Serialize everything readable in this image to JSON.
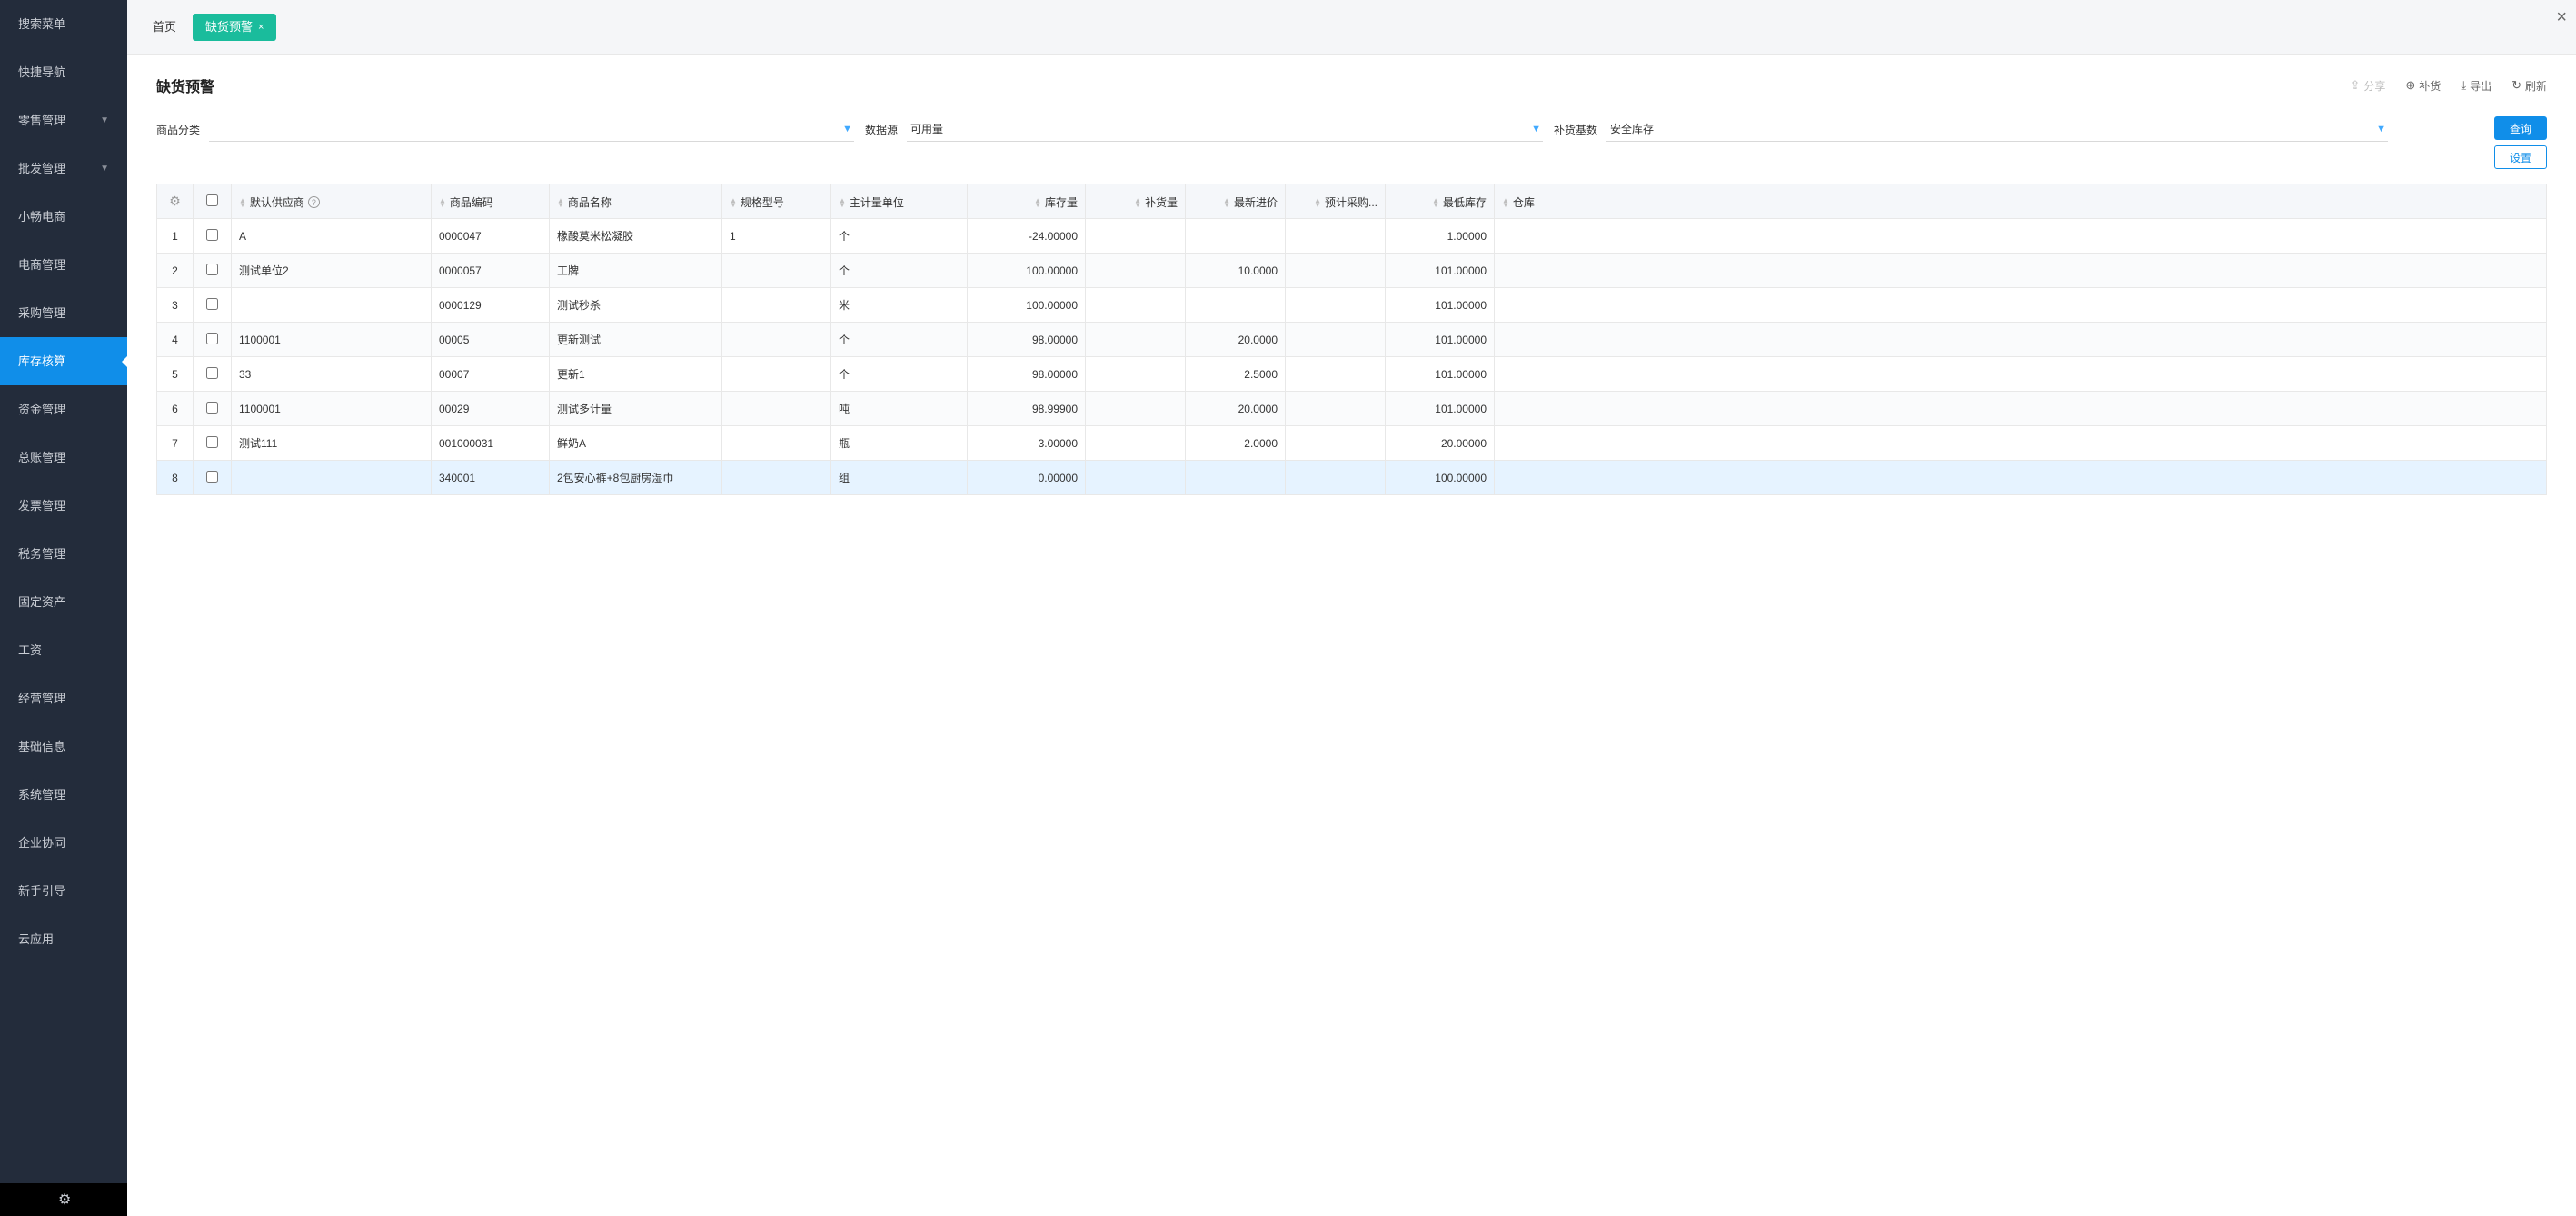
{
  "sidebar": {
    "items": [
      {
        "label": "搜索菜单",
        "expandable": false
      },
      {
        "label": "快捷导航",
        "expandable": false
      },
      {
        "label": "零售管理",
        "expandable": true
      },
      {
        "label": "批发管理",
        "expandable": true
      },
      {
        "label": "小畅电商",
        "expandable": false
      },
      {
        "label": "电商管理",
        "expandable": false
      },
      {
        "label": "采购管理",
        "expandable": false
      },
      {
        "label": "库存核算",
        "expandable": false,
        "active": true
      },
      {
        "label": "资金管理",
        "expandable": false
      },
      {
        "label": "总账管理",
        "expandable": false
      },
      {
        "label": "发票管理",
        "expandable": false
      },
      {
        "label": "税务管理",
        "expandable": false
      },
      {
        "label": "固定资产",
        "expandable": false
      },
      {
        "label": "工资",
        "expandable": false
      },
      {
        "label": "经营管理",
        "expandable": false
      },
      {
        "label": "基础信息",
        "expandable": false
      },
      {
        "label": "系统管理",
        "expandable": false
      },
      {
        "label": "企业协同",
        "expandable": false
      },
      {
        "label": "新手引导",
        "expandable": false
      },
      {
        "label": "云应用",
        "expandable": false
      }
    ]
  },
  "tabs": {
    "home": "首页",
    "active": "缺货预警"
  },
  "page": {
    "title": "缺货预警",
    "actions": {
      "share": "分享",
      "restock": "补货",
      "export": "导出",
      "refresh": "刷新"
    }
  },
  "filters": {
    "category_label": "商品分类",
    "source_label": "数据源",
    "source_value": "可用量",
    "basis_label": "补货基数",
    "basis_value": "安全库存",
    "query_btn": "查询",
    "settings_btn": "设置"
  },
  "columns": {
    "supplier": "默认供应商",
    "code": "商品编码",
    "name": "商品名称",
    "spec": "规格型号",
    "unit": "主计量单位",
    "stock": "库存量",
    "restock": "补货量",
    "price": "最新进价",
    "estimate": "预计采购...",
    "min": "最低库存",
    "warehouse": "仓库"
  },
  "rows": [
    {
      "idx": "1",
      "supplier": "A",
      "code": "0000047",
      "name": "橡酸莫米松凝胶",
      "spec": "1",
      "unit": "个",
      "stock": "-24.00000",
      "restock": "",
      "price": "",
      "estimate": "",
      "min": "1.00000"
    },
    {
      "idx": "2",
      "supplier": "测试单位2",
      "code": "0000057",
      "name": "工牌",
      "spec": "",
      "unit": "个",
      "stock": "100.00000",
      "restock": "",
      "price": "10.0000",
      "estimate": "",
      "min": "101.00000"
    },
    {
      "idx": "3",
      "supplier": "",
      "code": "0000129",
      "name": "测试秒杀",
      "spec": "",
      "unit": "米",
      "stock": "100.00000",
      "restock": "",
      "price": "",
      "estimate": "",
      "min": "101.00000"
    },
    {
      "idx": "4",
      "supplier": "1100001",
      "code": "00005",
      "name": "更新测试",
      "spec": "",
      "unit": "个",
      "stock": "98.00000",
      "restock": "",
      "price": "20.0000",
      "estimate": "",
      "min": "101.00000"
    },
    {
      "idx": "5",
      "supplier": "33",
      "code": "00007",
      "name": "更新1",
      "spec": "",
      "unit": "个",
      "stock": "98.00000",
      "restock": "",
      "price": "2.5000",
      "estimate": "",
      "min": "101.00000"
    },
    {
      "idx": "6",
      "supplier": "1100001",
      "code": "00029",
      "name": "测试多计量",
      "spec": "",
      "unit": "吨",
      "stock": "98.99900",
      "restock": "",
      "price": "20.0000",
      "estimate": "",
      "min": "101.00000"
    },
    {
      "idx": "7",
      "supplier": "测试111",
      "code": "001000031",
      "name": "鲜奶A",
      "spec": "",
      "unit": "瓶",
      "stock": "3.00000",
      "restock": "",
      "price": "2.0000",
      "estimate": "",
      "min": "20.00000"
    },
    {
      "idx": "8",
      "supplier": "",
      "code": "340001",
      "name": "2包安心裤+8包厨房湿巾",
      "spec": "",
      "unit": "组",
      "stock": "0.00000",
      "restock": "",
      "price": "",
      "estimate": "",
      "min": "100.00000",
      "hl": true
    }
  ]
}
